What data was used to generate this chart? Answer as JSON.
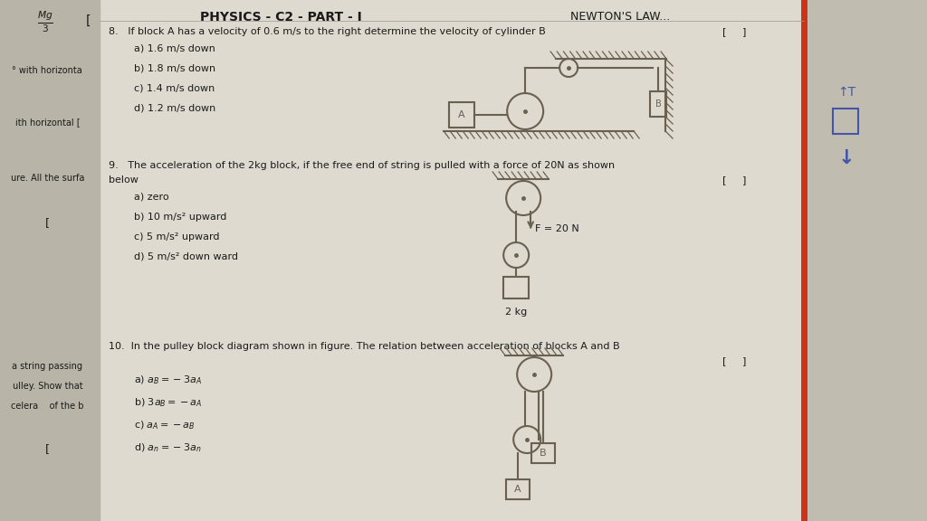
{
  "bg_color": "#c8c4b8",
  "paper_color": "#dedad0",
  "left_bg_color": "#b8b4a8",
  "right_edge_color": "#cc3318",
  "far_right_color": "#c0bcb0",
  "pulley_color": "#6a6050",
  "text_color": "#1a1a1a",
  "header": "PHYSICS - C2 - PART - I",
  "header_right": "NEWTON'S LAW...",
  "q8_text1": "8.   If block A has a velocity of 0.6 m/s to the right determine the velocity of cylinder B",
  "q8_bracket": "[     ]",
  "q8_answers": [
    "a) 1.6 m/s down",
    "b) 1.8 m/s down",
    "c) 1.4 m/s down",
    "d) 1.2 m/s down"
  ],
  "q9_text1": "9.   The acceleration of the 2kg block, if the free end of string is pulled with a force of 20N as shown",
  "q9_text2": "below",
  "q9_bracket": "[     ]",
  "q9_answers": [
    "a) zero",
    "b) 10 m/s² upward",
    "c) 5 m/s² upward",
    "d) 5 m/s² down ward"
  ],
  "q9_force": "F = 20 N",
  "q9_mass": "2 kg",
  "q10_text1": "10.  In the pulley block diagram shown in figure. The relation between acceleration of blocks A and B",
  "q10_bracket": "[     ]",
  "q10_answers_latex": [
    "a) $a_B = -3a_A$",
    "b) $3a_B = -a_A$",
    "c) $a_A = -a_B$",
    "d) $a_n = -3a_n$"
  ],
  "left_margin_items": [
    [
      50,
      10,
      "$\\frac{Mg}{3}$",
      11
    ],
    [
      97,
      16,
      "[",
      10
    ],
    [
      52,
      73,
      "° with horizonta",
      7
    ],
    [
      52,
      130,
      "ith horizontal [",
      7
    ],
    [
      52,
      192,
      "ure. All the surfa",
      7
    ],
    [
      52,
      240,
      "[",
      9
    ],
    [
      52,
      400,
      "a string passing",
      7
    ],
    [
      52,
      422,
      "ulley. Show that",
      7
    ],
    [
      52,
      444,
      "celera    of the b",
      7
    ],
    [
      52,
      490,
      "[",
      9
    ]
  ],
  "right_side_items": [
    [
      930,
      115,
      "↑ T",
      12
    ],
    [
      930,
      165,
      "↓",
      20
    ]
  ]
}
